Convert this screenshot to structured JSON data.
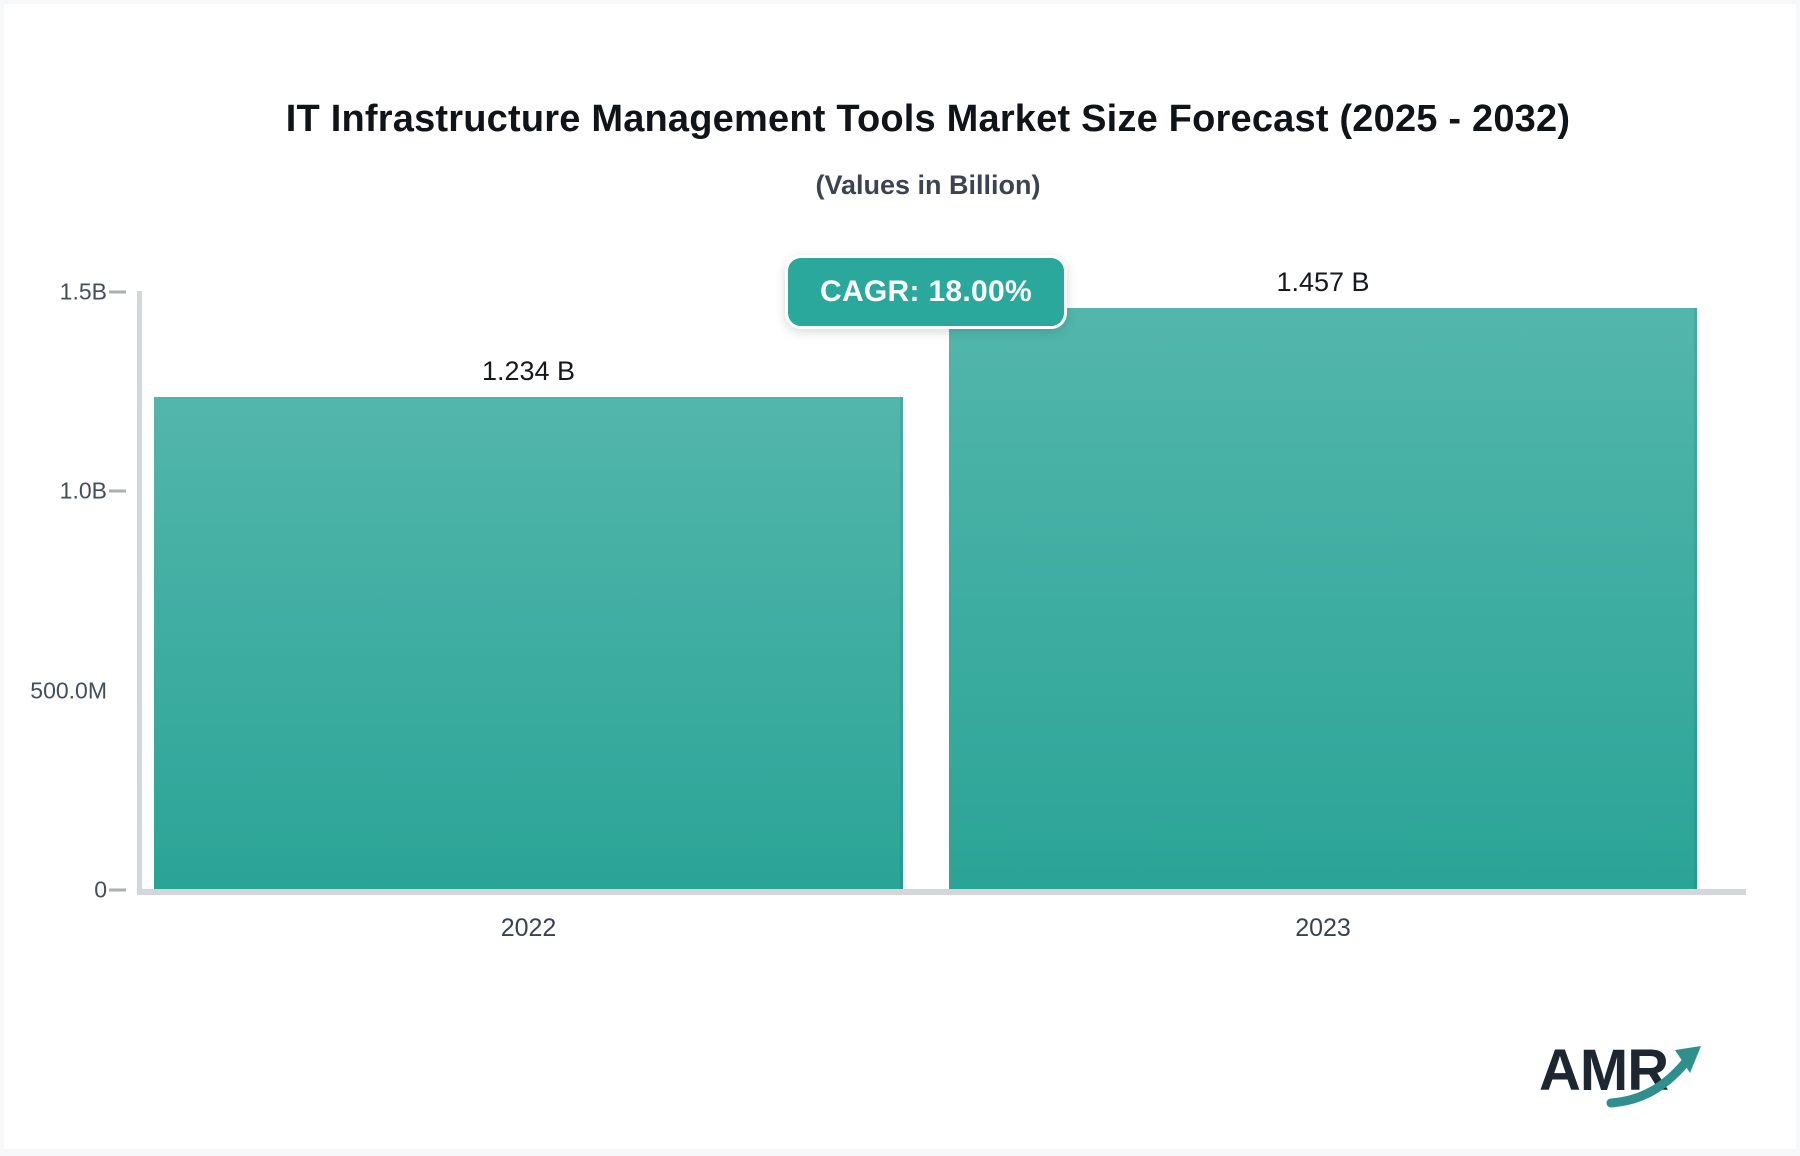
{
  "header": {
    "title": "IT Infrastructure Management Tools Market Size Forecast (2025 - 2032)",
    "subtitle": "(Values in Billion)"
  },
  "badge": {
    "label": "CAGR: 18.00%",
    "color": "#2aa89b"
  },
  "chart_data": {
    "type": "bar",
    "title": "IT Infrastructure Management Tools Market Size Forecast (2025 - 2032)",
    "subtitle": "(Values in Billion)",
    "categories": [
      "2022",
      "2023"
    ],
    "values": [
      1.234,
      1.457
    ],
    "value_labels": [
      "1.234 B",
      "1.457 B"
    ],
    "unit": "Billion",
    "cagr": "18.00%",
    "ylim": [
      0,
      1.5
    ],
    "yticks": [
      {
        "label": "1.5B",
        "value": 1.5,
        "tick": true
      },
      {
        "label": "1.0B",
        "value": 1.0,
        "tick": true
      },
      {
        "label": "500.0M",
        "value": 0.5,
        "tick": false
      },
      {
        "label": "0",
        "value": 0,
        "tick": true
      }
    ],
    "grid": false,
    "legend": false,
    "bar_gradient_top": "#53b6ac",
    "bar_gradient_bottom": "#2aa496",
    "axis_color": "#d3d6db"
  },
  "logo": {
    "text": "AMR",
    "arrow_color": "#2f8f8c",
    "text_color": "#1c2731"
  }
}
